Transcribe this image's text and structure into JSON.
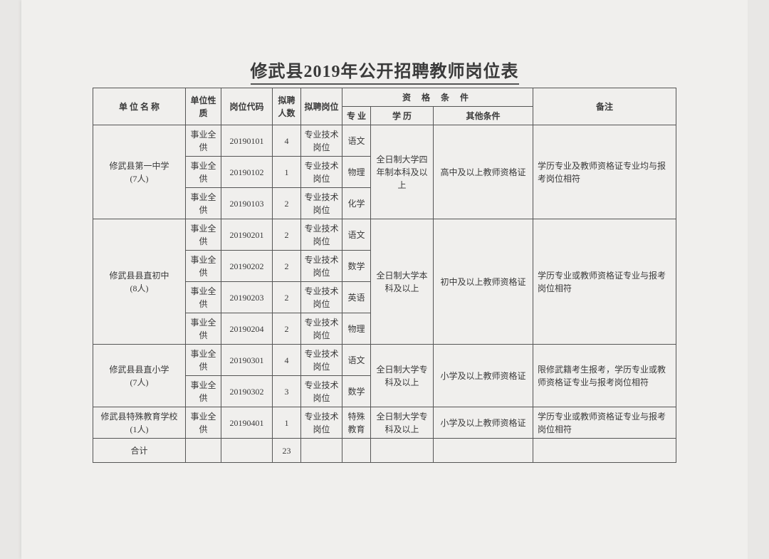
{
  "title": "修武县2019年公开招聘教师岗位表",
  "headers": {
    "unit": "单 位 名 称",
    "unit_type": "单位性质",
    "pos_code": "岗位代码",
    "count": "拟聘人数",
    "position": "拟聘岗位",
    "qualification": "资 格 条 件",
    "major": "专 业",
    "education": "学 历",
    "other": "其他条件",
    "note": "备注"
  },
  "groups": [
    {
      "unit": "修武县第一中学\n(7人)",
      "education": "全日制大学四年制本科及以上",
      "other": "高中及以上教师资格证",
      "note": "学历专业及教师资格证专业均与报考岗位相符",
      "rows": [
        {
          "unit_type": "事业全供",
          "code": "20190101",
          "count": "4",
          "position": "专业技术\n岗位",
          "major": "语文"
        },
        {
          "unit_type": "事业全供",
          "code": "20190102",
          "count": "1",
          "position": "专业技术\n岗位",
          "major": "物理"
        },
        {
          "unit_type": "事业全供",
          "code": "20190103",
          "count": "2",
          "position": "专业技术\n岗位",
          "major": "化学"
        }
      ]
    },
    {
      "unit": "修武县县直初中\n(8人)",
      "education": "全日制大学本科及以上",
      "other": "初中及以上教师资格证",
      "note": "学历专业或教师资格证专业与报考岗位相符",
      "rows": [
        {
          "unit_type": "事业全供",
          "code": "20190201",
          "count": "2",
          "position": "专业技术\n岗位",
          "major": "语文"
        },
        {
          "unit_type": "事业全供",
          "code": "20190202",
          "count": "2",
          "position": "专业技术\n岗位",
          "major": "数学"
        },
        {
          "unit_type": "事业全供",
          "code": "20190203",
          "count": "2",
          "position": "专业技术\n岗位",
          "major": "英语"
        },
        {
          "unit_type": "事业全供",
          "code": "20190204",
          "count": "2",
          "position": "专业技术\n岗位",
          "major": "物理"
        }
      ]
    },
    {
      "unit": "修武县县直小学\n(7人)",
      "education": "全日制大学专科及以上",
      "other": "小学及以上教师资格证",
      "note": "限修武籍考生报考，学历专业或教师资格证专业与报考岗位相符",
      "rows": [
        {
          "unit_type": "事业全供",
          "code": "20190301",
          "count": "4",
          "position": "专业技术\n岗位",
          "major": "语文"
        },
        {
          "unit_type": "事业全供",
          "code": "20190302",
          "count": "3",
          "position": "专业技术\n岗位",
          "major": "数学"
        }
      ]
    },
    {
      "unit": "修武县特殊教育学校\n(1人)",
      "education": "全日制大学专科及以上",
      "other": "小学及以上教师资格证",
      "note": "学历专业或教师资格证专业与报考岗位相符",
      "rows": [
        {
          "unit_type": "事业全供",
          "code": "20190401",
          "count": "1",
          "position": "专业技术\n岗位",
          "major": "特殊\n教育"
        }
      ]
    }
  ],
  "total": {
    "label": "合计",
    "count": "23"
  },
  "style": {
    "page_bg": "#e8e7e5",
    "paper_bg": "#f0efed",
    "border_color": "#555555",
    "text_color": "#3a3a3a",
    "title_fontsize": 24,
    "cell_fontsize": 12
  }
}
